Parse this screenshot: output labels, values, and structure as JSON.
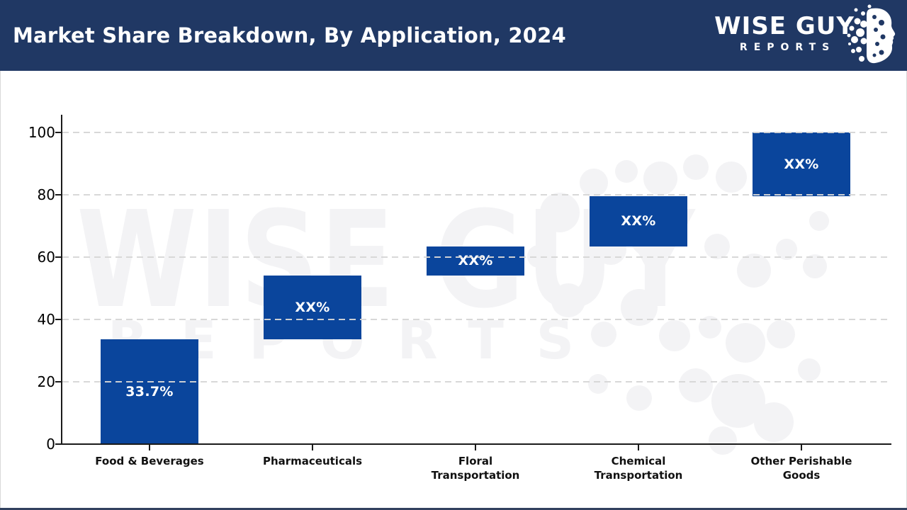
{
  "header": {
    "title": "Market Share Breakdown, By Application, 2024",
    "logo": {
      "line1": "WISE GUY",
      "line2": "REPORTS",
      "head_icon": "dotted-face-profile"
    }
  },
  "watermark": {
    "line1": "WISE GUY",
    "line2": "REPORTS"
  },
  "chart_data": {
    "type": "bar",
    "subtype": "waterfall",
    "title": "Market Share Breakdown, By Application, 2024",
    "categories": [
      "Food & Beverages",
      "Pharmaceuticals",
      "Floral\nTransportation",
      "Chemical\nTransportation",
      "Other Perishable\nGoods"
    ],
    "segments": [
      {
        "category": "Food & Beverages",
        "start": 0,
        "end": 33.7,
        "value_label": "33.7%"
      },
      {
        "category": "Pharmaceuticals",
        "start": 33.7,
        "end": 54.1,
        "value_label": "XX%"
      },
      {
        "category": "Floral Transportation",
        "start": 54.1,
        "end": 63.4,
        "value_label": "XX%"
      },
      {
        "category": "Chemical Transportation",
        "start": 63.4,
        "end": 79.6,
        "value_label": "XX%"
      },
      {
        "category": "Other Perishable Goods",
        "start": 79.6,
        "end": 100,
        "value_label": "XX%"
      }
    ],
    "y_ticks": [
      0,
      20,
      40,
      60,
      80,
      100
    ],
    "ylim": [
      0,
      105
    ],
    "xlabel": "",
    "ylabel": "",
    "grid": "horizontal-dashed",
    "legend": "none",
    "bar_color": "#0a459c",
    "value_label_color": "#ffffff"
  },
  "colors": {
    "header_bg": "#203864",
    "bar": "#0a459c",
    "grid": "#d6d6d6",
    "axis": "#1a1a1a",
    "watermark": "#f3f3f5",
    "bottom_strip": "#31415f"
  }
}
